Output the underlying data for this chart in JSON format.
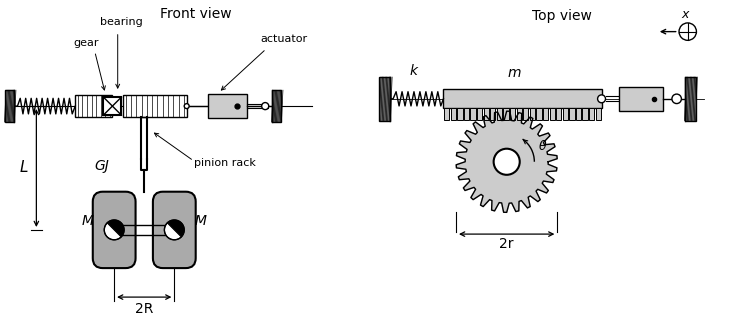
{
  "bg_color": "#ffffff",
  "lc": "#000000",
  "gray": "#aaaaaa",
  "lgray": "#cccccc",
  "dgray": "#888888",
  "front_title": "Front view",
  "top_title": "Top view",
  "label_bearing": "bearing",
  "label_gear": "gear",
  "label_actuator": "actuator",
  "label_GJ": "GJ",
  "label_pinion": "pinion rack",
  "label_L": "L",
  "label_M": "M",
  "label_2R": "2R",
  "label_k": "k",
  "label_m": "m",
  "label_x": "x",
  "label_2r": "2r"
}
